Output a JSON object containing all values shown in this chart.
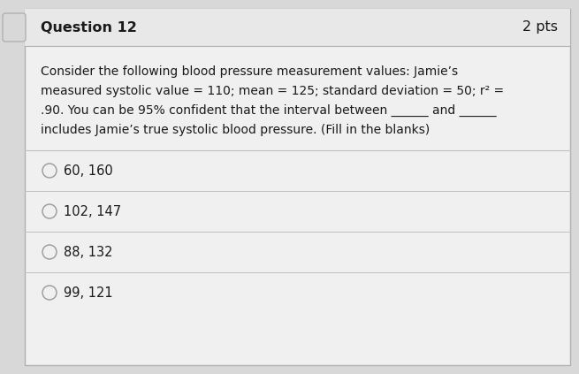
{
  "title": "Question 12",
  "pts": "2 pts",
  "question_text_lines": [
    "Consider the following blood pressure measurement values: Jamie’s",
    "measured systolic value = 110; mean = 125; standard deviation = 50; r² =",
    ".90. You can be 95% confident that the interval between ______ and ______",
    "includes Jamie’s true systolic blood pressure. (Fill in the blanks)"
  ],
  "choices": [
    "60, 160",
    "102, 147",
    "88, 132",
    "99, 121"
  ],
  "outer_bg": "#d8d8d8",
  "card_bg": "#f0f0f0",
  "header_bg": "#e8e8e8",
  "body_bg": "#ebebeb",
  "choice_bg": "#ebebeb",
  "border_color": "#b0b0b0",
  "divider_color": "#c0c0c0",
  "text_color": "#1a1a1a",
  "circle_edge_color": "#999999",
  "title_fontsize": 11.5,
  "pts_fontsize": 11.5,
  "body_fontsize": 10.0,
  "choice_fontsize": 10.5
}
